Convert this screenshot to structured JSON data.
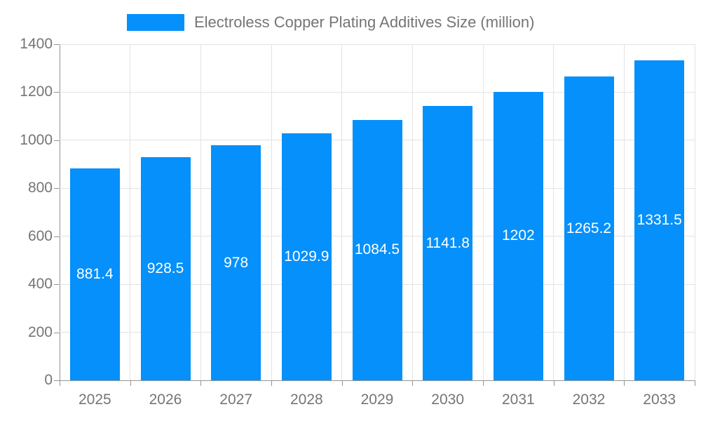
{
  "legend": {
    "label": "Electroless Copper Plating Additives Size (million)"
  },
  "chart_data": {
    "type": "bar",
    "title": "Electroless Copper Plating Additives Size (million)",
    "categories": [
      "2025",
      "2026",
      "2027",
      "2028",
      "2029",
      "2030",
      "2031",
      "2032",
      "2033"
    ],
    "values": [
      881.4,
      928.5,
      978,
      1029.9,
      1084.5,
      1141.8,
      1202,
      1265.2,
      1331.5
    ],
    "xlabel": "",
    "ylabel": "",
    "ylim": [
      0,
      1400
    ],
    "yticks": [
      0,
      200,
      400,
      600,
      800,
      1000,
      1200,
      1400
    ],
    "grid": true,
    "legend_position": "top-center",
    "colors": {
      "bar": "#0590fb",
      "grid_line": "#e3e3e3",
      "axis_line": "#949494",
      "axis_text": "#757575",
      "value_label_text": "#ffffff",
      "background": "#ffffff"
    }
  }
}
